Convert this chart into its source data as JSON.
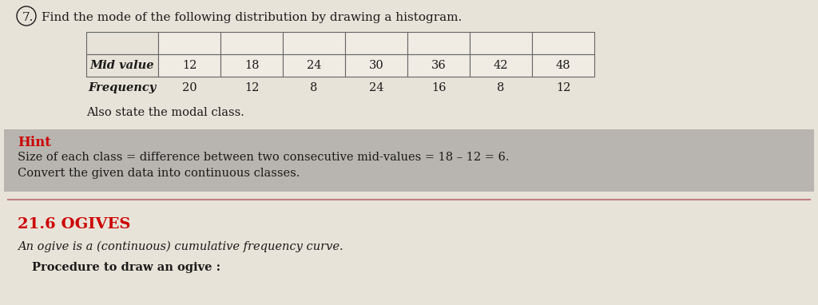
{
  "question_number": "7.",
  "question_text": "Find the mode of the following distribution by drawing a histogram.",
  "table_headers": [
    "Mid value",
    "12",
    "18",
    "24",
    "30",
    "36",
    "42",
    "48"
  ],
  "table_row2": [
    "Frequency",
    "20",
    "12",
    "8",
    "24",
    "16",
    "8",
    "12"
  ],
  "also_text": "Also state the modal class.",
  "hint_label": "Hint",
  "hint_line1": "Size of each class = difference between two consecutive mid-values = 18 – 12 = 6.",
  "hint_line2": "Convert the given data into continuous classes.",
  "section_title": "21.6 OGIVES",
  "section_italic1": "An ogive is a (continuous) cumulative frequency curve.",
  "section_bold": "Procedure to draw an ogive :",
  "section_color": "#cc0000",
  "text_color": "#1a1a1a",
  "page_bg": "#e8e3d8",
  "hint_bg": "#b8b5b0",
  "divider_color": "#c08080",
  "table_header_bg": "#e8e3d8",
  "table_cell_bg": "#f0ece4"
}
